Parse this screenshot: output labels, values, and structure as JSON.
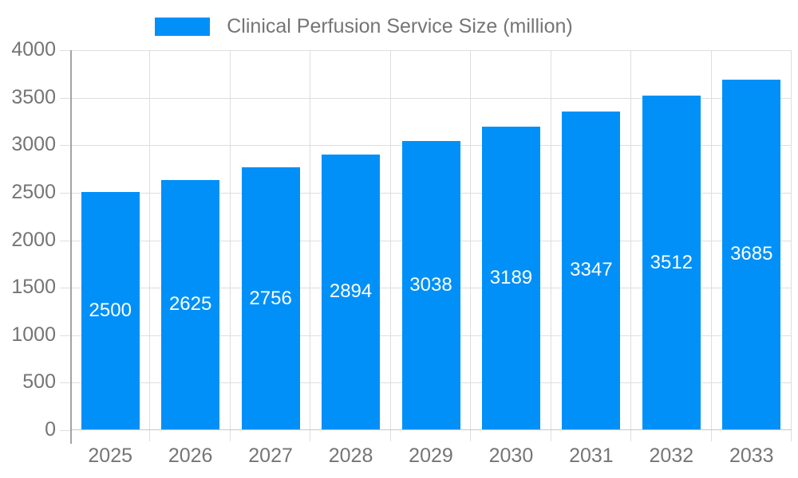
{
  "legend": {
    "label": "Clinical Perfusion Service Size (million)"
  },
  "chart_data": {
    "type": "bar",
    "title": "Clinical Perfusion Service Size (million)",
    "categories": [
      "2025",
      "2026",
      "2027",
      "2028",
      "2029",
      "2030",
      "2031",
      "2032",
      "2033"
    ],
    "values": [
      2500,
      2625,
      2756,
      2894,
      3038,
      3189,
      3347,
      3512,
      3685
    ],
    "xlabel": "",
    "ylabel": "",
    "ylim": [
      0,
      4000
    ],
    "yticks": [
      0,
      500,
      1000,
      1500,
      2000,
      2500,
      3000,
      3500,
      4000
    ],
    "grid": true,
    "legend_position": "top-center",
    "bar_labels_position": "center",
    "colors": {
      "bar": "#0090f8",
      "bar_label": "#ffffff",
      "axis_text": "#757575",
      "gridline": "#dedede",
      "axis_line": "#a3a3a3",
      "baseline": "#c6c6c6",
      "background": "#ffffff"
    }
  }
}
